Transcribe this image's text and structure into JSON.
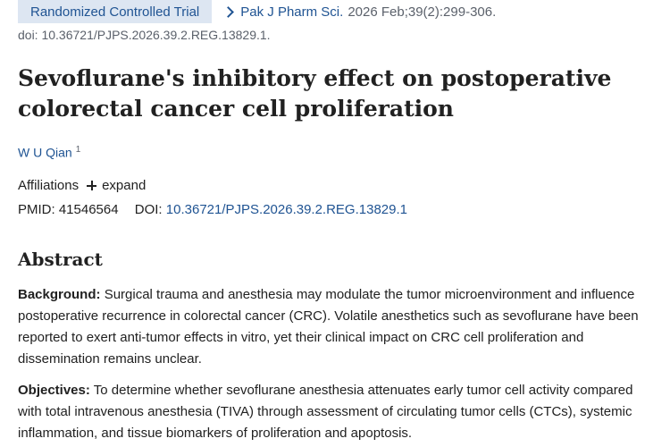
{
  "header": {
    "publication_type": "Randomized Controlled Trial",
    "journal": "Pak J Pharm Sci.",
    "citation": "2026 Feb;39(2):299-306.",
    "doi_line": "doi: 10.36721/PJPS.2026.39.2.REG.13829.1."
  },
  "article": {
    "title": "Sevoflurane's inhibitory effect on postoperative colorectal cancer cell proliferation",
    "author": {
      "name": "W U Qian",
      "affiliation_ref": "1"
    },
    "affiliations_label": "Affiliations",
    "expand_label": "expand",
    "pmid_label": "PMID:",
    "pmid_value": "41546564",
    "doi_label": "DOI:",
    "doi_value": "10.36721/PJPS.2026.39.2.REG.13829.1"
  },
  "abstract": {
    "heading": "Abstract",
    "sections": [
      {
        "label": "Background:",
        "text": "Surgical trauma and anesthesia may modulate the tumor microenvironment and influence postoperative recurrence in colorectal cancer (CRC). Volatile anesthetics such as sevoflurane have been reported to exert anti-tumor effects in vitro, yet their clinical impact on CRC cell proliferation and dissemination remains unclear."
      },
      {
        "label": "Objectives:",
        "text": "To determine whether sevoflurane anesthesia attenuates early tumor cell activity compared with total intravenous anesthesia (TIVA) through assessment of circulating tumor cells (CTCs), systemic inflammation, and tissue biomarkers of proliferation and apoptosis."
      }
    ]
  },
  "icons": {
    "journal_chevron": "chevron-right-icon",
    "affiliations_toggle": "plus-icon"
  },
  "colors": {
    "link": "#205493",
    "badge_bg": "#dde6f2",
    "text": "#212121",
    "muted": "#5b616b"
  }
}
